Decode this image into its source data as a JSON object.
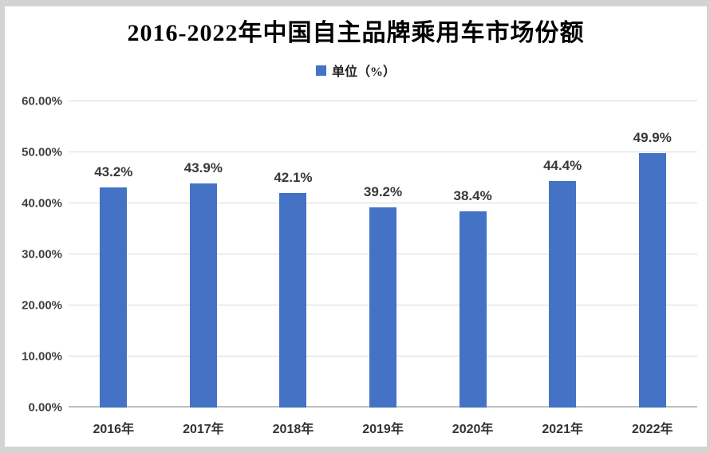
{
  "frame": {
    "background_color": "#ffffff",
    "border_color": "#d3d3d3"
  },
  "chart_data": {
    "type": "bar",
    "title": "2016-2022年中国自主品牌乘用车市场份额",
    "legend": {
      "label": "单位（%）",
      "position": "top"
    },
    "categories": [
      "2016年",
      "2017年",
      "2018年",
      "2019年",
      "2020年",
      "2021年",
      "2022年"
    ],
    "values": [
      43.2,
      43.9,
      42.1,
      39.2,
      38.4,
      44.4,
      49.9
    ],
    "value_labels": [
      "43.2%",
      "43.9%",
      "42.1%",
      "39.2%",
      "38.4%",
      "44.4%",
      "49.9%"
    ],
    "xlabel": "",
    "ylabel": "",
    "ylim": [
      0,
      60
    ],
    "y_ticks": [
      {
        "v": 0,
        "label": "0.00%"
      },
      {
        "v": 10,
        "label": "10.00%"
      },
      {
        "v": 20,
        "label": "20.00%"
      },
      {
        "v": 30,
        "label": "30.00%"
      },
      {
        "v": 40,
        "label": "40.00%"
      },
      {
        "v": 50,
        "label": "50.00%"
      },
      {
        "v": 60,
        "label": "60.00%"
      }
    ],
    "grid": true,
    "legend_position": "top-center",
    "bar_color": "#4472C4",
    "gridline_color": "#d9d9d9",
    "axis_line_color": "#bfbfbf",
    "label_color": "#383838",
    "tick_label_color": "#3f3f3f",
    "title_color": "#000000"
  }
}
